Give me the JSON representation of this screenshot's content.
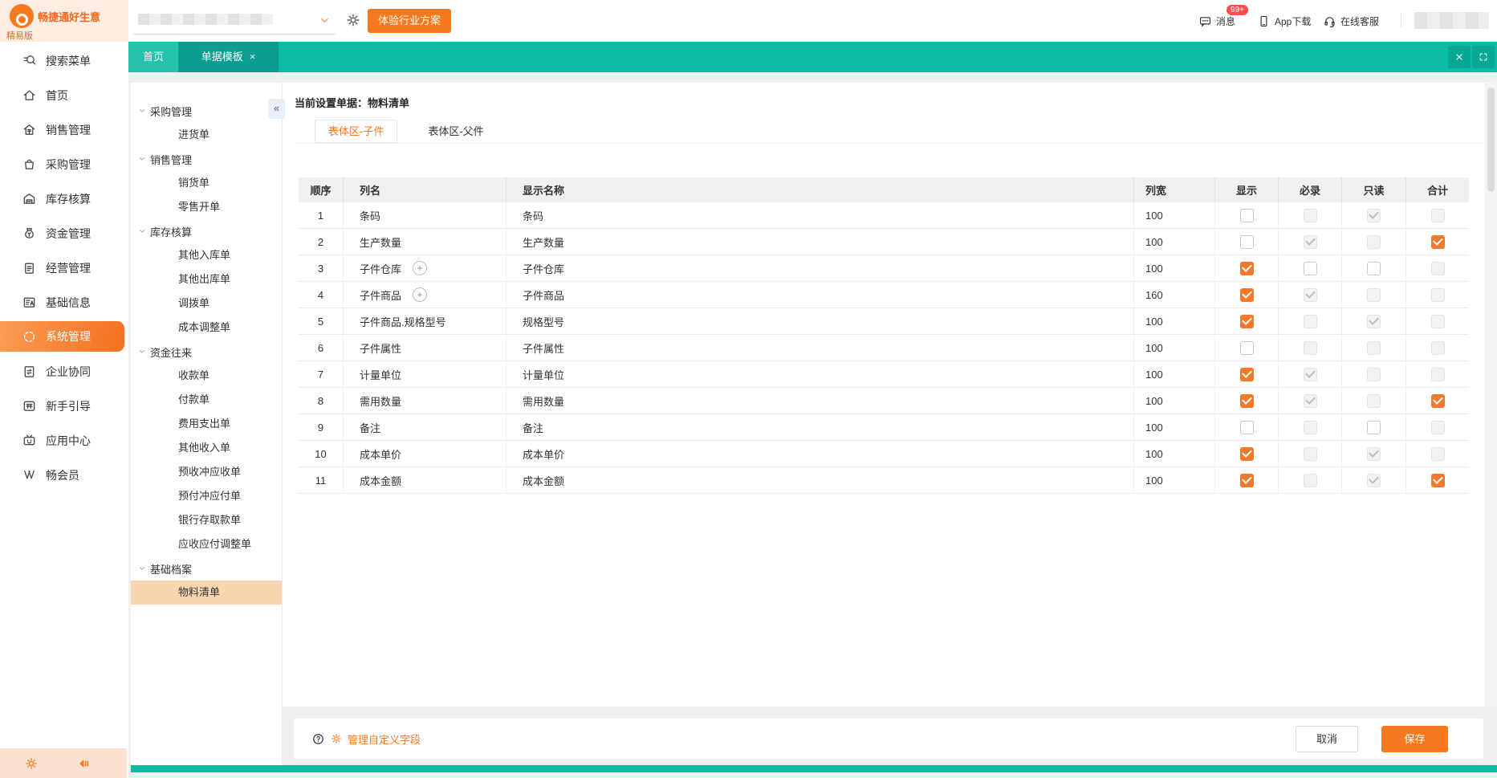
{
  "colors": {
    "accent": "#F5791F",
    "teal": "#0CBBA3",
    "teal_active_tab": "#0B9D90",
    "badge_red": "#FF4D4F",
    "tree_highlight": "#F9D5B2"
  },
  "topbar": {
    "brand_name": "畅捷通好生意",
    "edition": "精易版",
    "trial_button": "体验行业方案",
    "messages_label": "消息",
    "messages_badge": "99+",
    "app_download_label": "App下载",
    "online_service_label": "在线客服"
  },
  "tabbar": {
    "tabs": [
      {
        "label": "首页",
        "active": false
      },
      {
        "label": "单据模板",
        "active": true,
        "closable": true
      }
    ]
  },
  "sidebar": {
    "items": [
      {
        "label": "搜索菜单",
        "icon": "search",
        "active": false
      },
      {
        "label": "首页",
        "icon": "home",
        "active": false
      },
      {
        "label": "销售管理",
        "icon": "sales",
        "active": false
      },
      {
        "label": "采购管理",
        "icon": "purchase",
        "active": false
      },
      {
        "label": "库存核算",
        "icon": "inventory",
        "active": false
      },
      {
        "label": "资金管理",
        "icon": "funds",
        "active": false
      },
      {
        "label": "经营管理",
        "icon": "operations",
        "active": false
      },
      {
        "label": "基础信息",
        "icon": "baseinfo",
        "active": false
      },
      {
        "label": "系统管理",
        "icon": "system",
        "active": true
      },
      {
        "label": "企业协同",
        "icon": "collab",
        "active": false
      },
      {
        "label": "新手引导",
        "icon": "guide",
        "active": false
      },
      {
        "label": "应用中心",
        "icon": "apps",
        "active": false
      },
      {
        "label": "畅会员",
        "icon": "member",
        "active": false
      }
    ]
  },
  "tree": {
    "groups": [
      {
        "label": "采购管理",
        "children": [
          {
            "label": "进货单",
            "active": false
          }
        ]
      },
      {
        "label": "销售管理",
        "children": [
          {
            "label": "销货单",
            "active": false
          },
          {
            "label": "零售开单",
            "active": false
          }
        ]
      },
      {
        "label": "库存核算",
        "children": [
          {
            "label": "其他入库单",
            "active": false
          },
          {
            "label": "其他出库单",
            "active": false
          },
          {
            "label": "调拨单",
            "active": false
          },
          {
            "label": "成本调整单",
            "active": false
          }
        ]
      },
      {
        "label": "资金往来",
        "children": [
          {
            "label": "收款单",
            "active": false
          },
          {
            "label": "付款单",
            "active": false
          },
          {
            "label": "费用支出单",
            "active": false
          },
          {
            "label": "其他收入单",
            "active": false
          },
          {
            "label": "预收冲应收单",
            "active": false
          },
          {
            "label": "预付冲应付单",
            "active": false
          },
          {
            "label": "银行存取款单",
            "active": false
          },
          {
            "label": "应收应付调整单",
            "active": false
          }
        ]
      },
      {
        "label": "基础档案",
        "children": [
          {
            "label": "物料清单",
            "active": true
          }
        ]
      }
    ]
  },
  "content": {
    "current_doc_label": "当前设置单据：物料清单",
    "tabs": [
      {
        "label": "表体区-子件",
        "active": true
      },
      {
        "label": "表体区-父件",
        "active": false
      }
    ],
    "table": {
      "headers": [
        "顺序",
        "列名",
        "显示名称",
        "列宽",
        "显示",
        "必录",
        "只读",
        "合计"
      ],
      "check_columns": [
        "show",
        "required",
        "readonly",
        "total"
      ],
      "rows": [
        {
          "seq": "1",
          "col_name": "条码",
          "display_name": "条码",
          "width": "100",
          "has_add": false,
          "checks": [
            "off",
            "disabled",
            "disabled-checked",
            "disabled"
          ]
        },
        {
          "seq": "2",
          "col_name": "生产数量",
          "display_name": "生产数量",
          "width": "100",
          "has_add": false,
          "checks": [
            "off",
            "disabled-checked",
            "disabled",
            "on"
          ]
        },
        {
          "seq": "3",
          "col_name": "子件仓库",
          "display_name": "子件仓库",
          "width": "100",
          "has_add": true,
          "checks": [
            "on",
            "off",
            "off",
            "disabled"
          ]
        },
        {
          "seq": "4",
          "col_name": "子件商品",
          "display_name": "子件商品",
          "width": "160",
          "has_add": true,
          "checks": [
            "on",
            "disabled-checked",
            "disabled",
            "disabled"
          ]
        },
        {
          "seq": "5",
          "col_name": "子件商品.规格型号",
          "display_name": "规格型号",
          "width": "100",
          "has_add": false,
          "checks": [
            "on",
            "disabled",
            "disabled-checked",
            "disabled"
          ]
        },
        {
          "seq": "6",
          "col_name": "子件属性",
          "display_name": "子件属性",
          "width": "100",
          "has_add": false,
          "checks": [
            "off",
            "disabled",
            "disabled",
            "disabled"
          ]
        },
        {
          "seq": "7",
          "col_name": "计量单位",
          "display_name": "计量单位",
          "width": "100",
          "has_add": false,
          "checks": [
            "on",
            "disabled-checked",
            "disabled",
            "disabled"
          ]
        },
        {
          "seq": "8",
          "col_name": "需用数量",
          "display_name": "需用数量",
          "width": "100",
          "has_add": false,
          "checks": [
            "on",
            "disabled-checked",
            "disabled",
            "on"
          ]
        },
        {
          "seq": "9",
          "col_name": "备注",
          "display_name": "备注",
          "width": "100",
          "has_add": false,
          "checks": [
            "off",
            "disabled",
            "off",
            "disabled"
          ]
        },
        {
          "seq": "10",
          "col_name": "成本单价",
          "display_name": "成本单价",
          "width": "100",
          "has_add": false,
          "checks": [
            "on",
            "disabled",
            "disabled-checked",
            "disabled"
          ]
        },
        {
          "seq": "11",
          "col_name": "成本金额",
          "display_name": "成本金额",
          "width": "100",
          "has_add": false,
          "checks": [
            "on",
            "disabled",
            "disabled-checked",
            "on"
          ]
        }
      ]
    },
    "footer": {
      "manage_fields_label": "管理自定义字段",
      "cancel_label": "取消",
      "save_label": "保存"
    }
  }
}
